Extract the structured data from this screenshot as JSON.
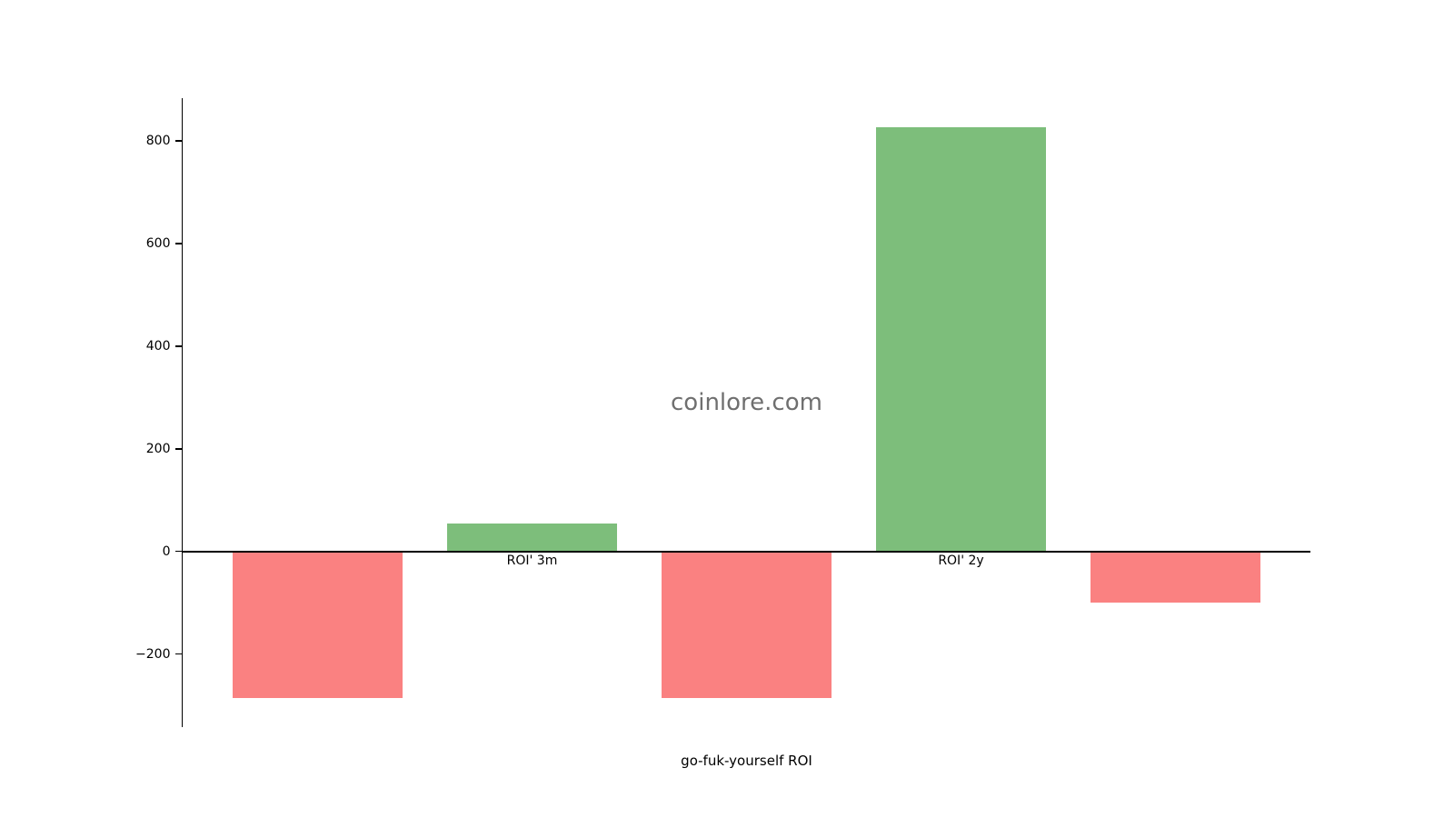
{
  "watermark": {
    "text": "coinlore.com",
    "color": "#6f6f6f"
  },
  "chart_data": {
    "type": "bar",
    "title": "go-fuk-yourself ROI",
    "title_position": "bottom-center",
    "categories": [
      "",
      "ROI' 3m",
      "",
      "ROI' 2y",
      ""
    ],
    "values": [
      -286,
      55,
      -286,
      827,
      -100
    ],
    "bar_colors": [
      "#fa8181",
      "#7dbe7b",
      "#fa8181",
      "#7dbe7b",
      "#fa8181"
    ],
    "positive_color": "#7dbe7b",
    "negative_color": "#fa8181",
    "y_ticks": [
      800,
      600,
      400,
      200,
      0,
      -200
    ],
    "y_tick_labels": [
      "800",
      "600",
      "400",
      "200",
      "0",
      "−200"
    ],
    "ylim": [
      -342,
      883
    ],
    "xlabel": "",
    "ylabel": "",
    "grid": false,
    "legend": null,
    "axis_color": "#000000",
    "background_color": "#ffffff"
  }
}
